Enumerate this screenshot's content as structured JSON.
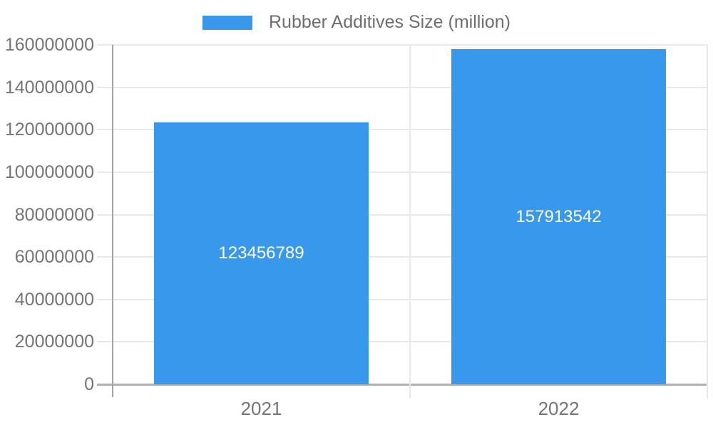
{
  "legend": {
    "label": "Rubber Additives Size (million)"
  },
  "chart_data": {
    "type": "bar",
    "title": "Rubber Additives Size (million)",
    "categories": [
      "2021",
      "2022"
    ],
    "series": [
      {
        "name": "Rubber Additives Size (million)",
        "values": [
          123456789,
          157913542
        ]
      }
    ],
    "data_labels": [
      "123456789",
      "157913542"
    ],
    "yticks": [
      0,
      20000000,
      40000000,
      60000000,
      80000000,
      100000000,
      120000000,
      140000000,
      160000000
    ],
    "ytick_labels": [
      "0",
      "20000000",
      "40000000",
      "60000000",
      "80000000",
      "100000000",
      "120000000",
      "140000000",
      "160000000"
    ],
    "ylim": [
      0,
      160000000
    ],
    "xlabel": "",
    "ylabel": "",
    "grid": true,
    "legend_position": "top",
    "colors": {
      "bar": "#3898EC",
      "bar_label": "#FFFFFF",
      "axis_text": "#757575",
      "legend_text": "#6E6E6E",
      "gridline": "#E8E8E8",
      "baseline": "#B0B0B0",
      "axis_line": "#A3A3A3"
    }
  }
}
